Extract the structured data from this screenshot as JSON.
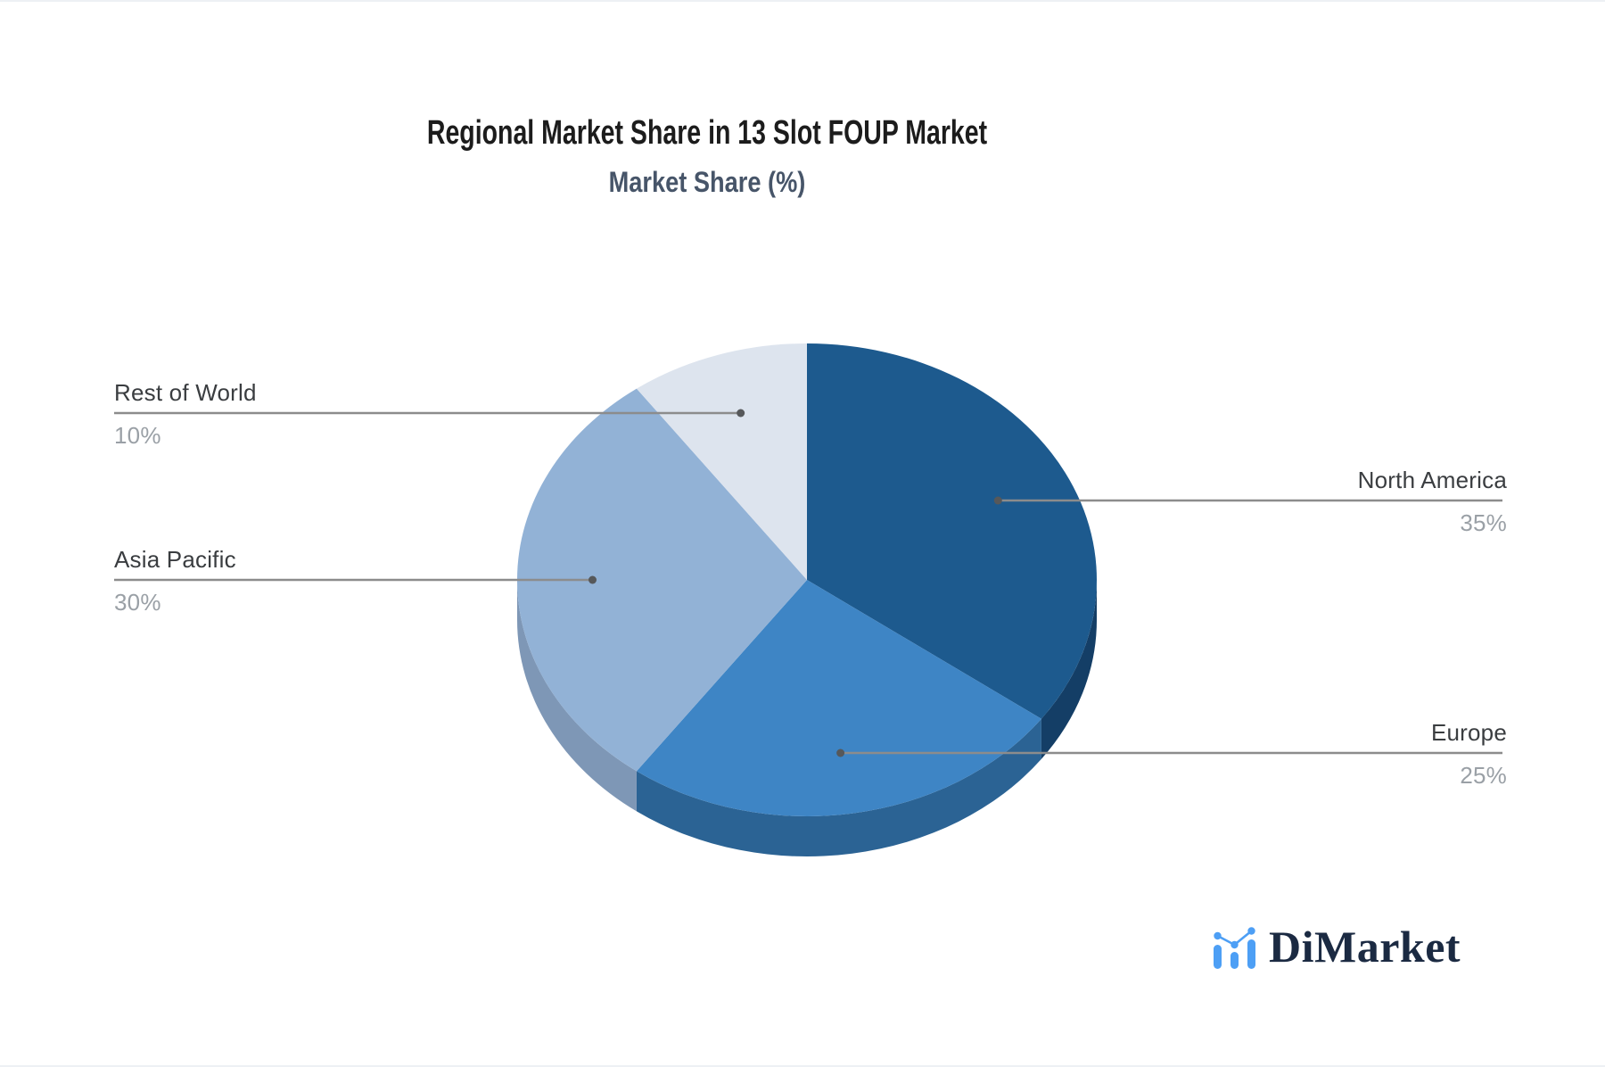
{
  "header": {
    "title": "Regional Market Share in 13 Slot FOUP Market",
    "subtitle": "Market Share (%)"
  },
  "chart_data": {
    "type": "pie",
    "style": "3d-pie",
    "title": "Regional Market Share in 13 Slot FOUP Market",
    "subtitle": "Market Share (%)",
    "unit": "%",
    "direction": "clockwise",
    "start_angle_deg": 0,
    "categories": [
      "North America",
      "Europe",
      "Asia Pacific",
      "Rest of World"
    ],
    "values": [
      35,
      25,
      30,
      10
    ],
    "slices": [
      {
        "label": "North America",
        "value": 35,
        "pct_label": "35%",
        "color": "#1d5a8e",
        "side_color": "#143e66",
        "label_side": "right"
      },
      {
        "label": "Europe",
        "value": 25,
        "pct_label": "25%",
        "color": "#3e85c5",
        "side_color": "#2b6394",
        "label_side": "right"
      },
      {
        "label": "Asia Pacific",
        "value": 30,
        "pct_label": "30%",
        "color": "#92b2d6",
        "side_color": "#7e97b6",
        "label_side": "left"
      },
      {
        "label": "Rest of World",
        "value": 10,
        "pct_label": "10%",
        "color": "#dde4ee",
        "side_color": "#c9d2e0",
        "label_side": "left"
      }
    ],
    "leader_line_color": "#8c8c8c",
    "leader_dot_color": "#56585a",
    "label_color": "#3a3d40",
    "pct_color": "#9aa0a6"
  },
  "branding": {
    "name": "DiMarket",
    "icon": "bar-line-chart-icon",
    "icon_color": "#4d9ff5",
    "text_color": "#1b2a42"
  }
}
